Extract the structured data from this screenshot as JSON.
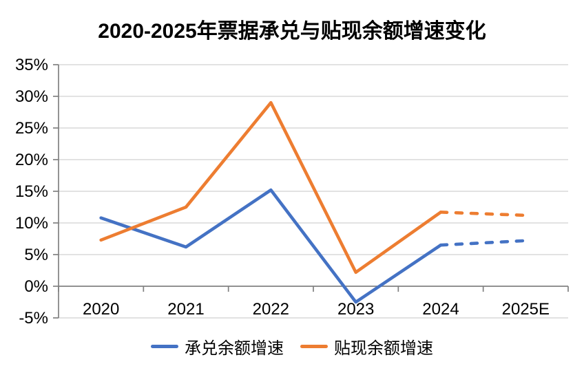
{
  "chart_data": {
    "type": "line",
    "title": "2020-2025年票据承兑与贴现余额增速变化",
    "xlabel": "",
    "ylabel": "",
    "categories": [
      "2020",
      "2021",
      "2022",
      "2023",
      "2024",
      "2025E"
    ],
    "series": [
      {
        "name": "承兑余额增速",
        "color": "#4472C4",
        "values": [
          10.8,
          6.2,
          15.2,
          -2.5,
          6.5,
          7.2
        ],
        "dashed_from_index": 4
      },
      {
        "name": "贴现余额增速",
        "color": "#ED7D31",
        "values": [
          7.3,
          12.5,
          29.0,
          2.2,
          11.7,
          11.2
        ],
        "dashed_from_index": 4
      }
    ],
    "ylim": [
      -5,
      35
    ],
    "ytick_step": 5,
    "ytick_labels": [
      "35%",
      "30%",
      "25%",
      "20%",
      "15%",
      "10%",
      "5%",
      "0%",
      "-5%"
    ],
    "grid": "horizontal",
    "legend_position": "bottom",
    "colors": {
      "gridline": "#D9D9D9",
      "axis": "#808080",
      "label": "#000000",
      "background": "#FFFFFF"
    }
  }
}
